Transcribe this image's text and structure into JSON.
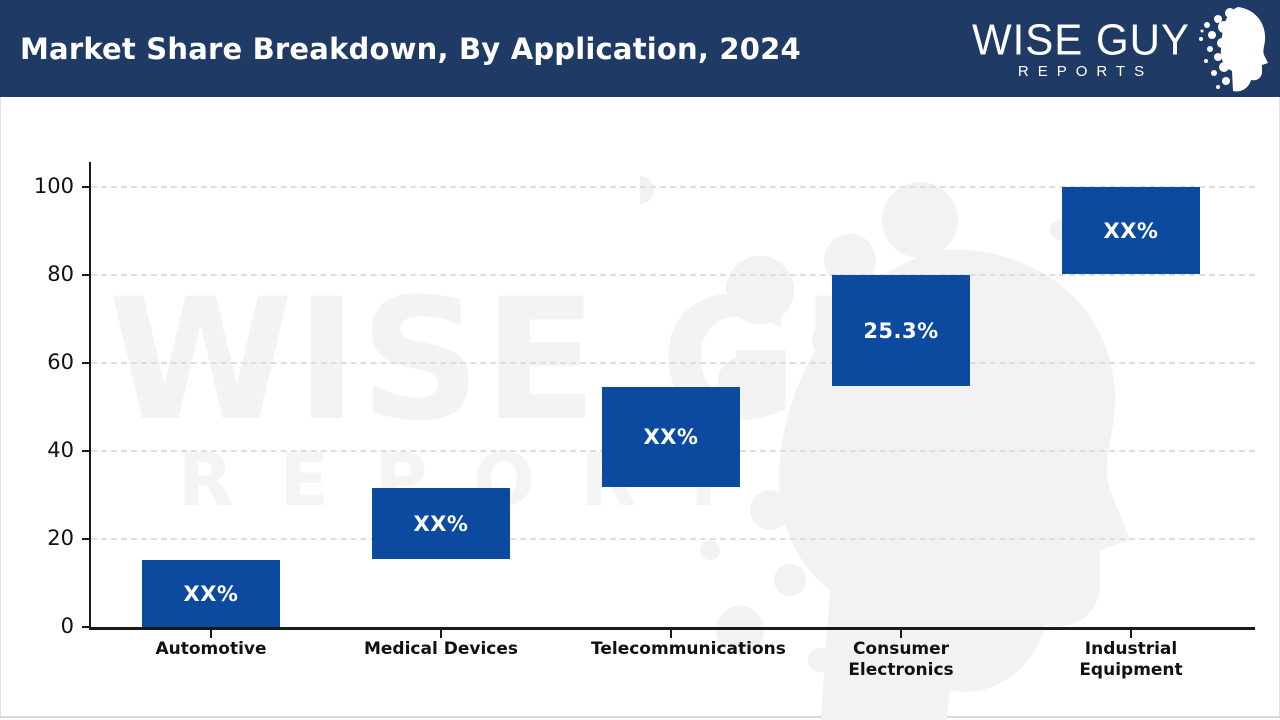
{
  "header": {
    "title": "Market Share Breakdown, By Application, 2024",
    "logo": {
      "wordmark": "WISE GUY",
      "subtext": "REPORTS"
    },
    "bg_color": "#203a66"
  },
  "watermark": {
    "wordmark": "WISE GUY",
    "subtext": "REPORTS"
  },
  "chart_data": {
    "type": "bar",
    "subtype": "waterfall-floating-segments",
    "title": "Market Share Breakdown, By Application, 2024",
    "xlabel": "",
    "ylabel": "",
    "ylim": [
      0,
      105
    ],
    "yticks": [
      0,
      20,
      40,
      60,
      80,
      100
    ],
    "grid": "horizontal-dashed",
    "legend": "none",
    "bar_color": "#0b4a9e",
    "value_label_color": "#ffffff",
    "categories": [
      "Automotive",
      "Medical Devices",
      "Telecommunications",
      "Consumer Electronics",
      "Industrial Equipment"
    ],
    "segments": [
      {
        "category": "Automotive",
        "start": 0,
        "end": 15.2,
        "label": "XX%"
      },
      {
        "category": "Medical Devices",
        "start": 15.4,
        "end": 31.6,
        "label": "XX%"
      },
      {
        "category": "Telecommunications",
        "start": 31.8,
        "end": 54.6,
        "label": "XX%"
      },
      {
        "category": "Consumer Electronics",
        "start": 54.7,
        "end": 80.0,
        "label": "25.3%"
      },
      {
        "category": "Industrial Equipment",
        "start": 80.2,
        "end": 100.0,
        "label": "XX%"
      }
    ]
  }
}
